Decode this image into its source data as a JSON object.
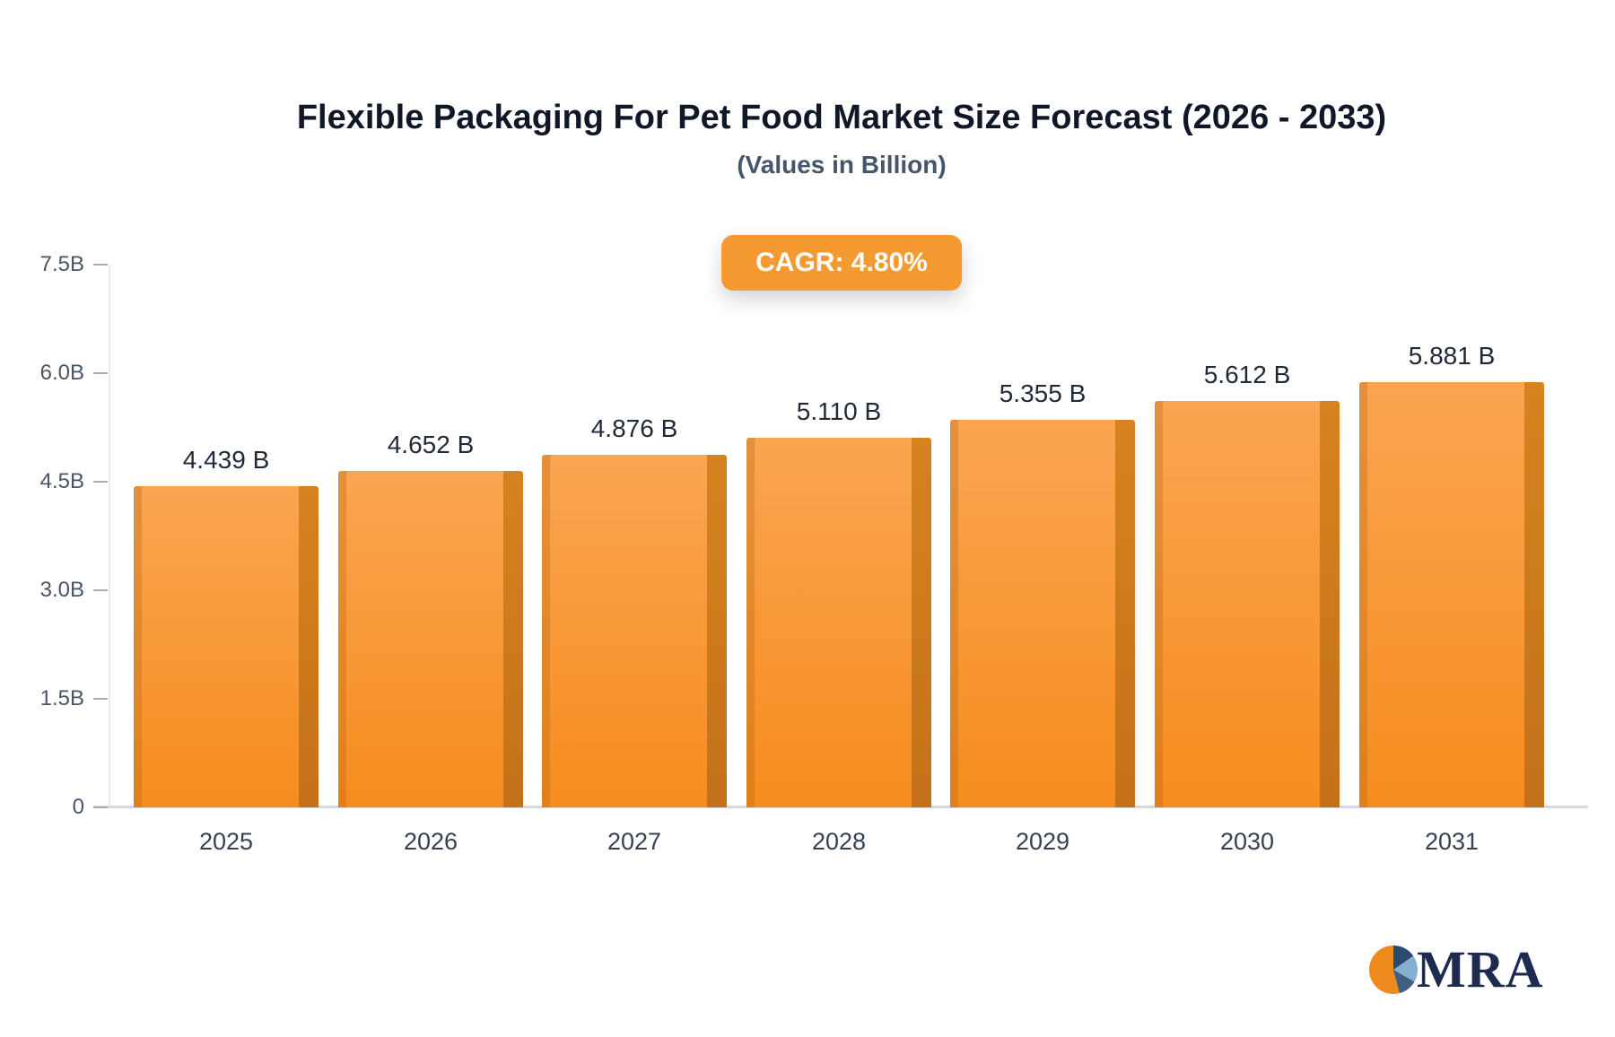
{
  "logo_text": "MRA",
  "chart_data": {
    "type": "bar",
    "title": "Flexible Packaging For Pet Food Market Size Forecast (2026 - 2033)",
    "subtitle": "(Values in Billion)",
    "annotation": "CAGR: 4.80%",
    "categories": [
      "2025",
      "2026",
      "2027",
      "2028",
      "2029",
      "2030",
      "2031"
    ],
    "values": [
      4.439,
      4.652,
      4.876,
      5.11,
      5.355,
      5.612,
      5.881
    ],
    "value_labels": [
      "4.439 B",
      "4.652 B",
      "4.876 B",
      "5.110 B",
      "5.355 B",
      "5.612 B",
      "5.881 B"
    ],
    "y_ticks": [
      "0",
      "1.5B",
      "3.0B",
      "4.5B",
      "6.0B",
      "7.5B"
    ],
    "y_tick_values": [
      0,
      1.5,
      3.0,
      4.5,
      6.0,
      7.5
    ],
    "ylim": [
      0,
      7.5
    ],
    "xlabel": "",
    "ylabel": "",
    "legend": "none",
    "grid": "none",
    "bar_colors": {
      "face_top": "#faa551",
      "face_bottom": "#f68c1e",
      "side_top": "#d5831f",
      "side_bottom": "#c4711a"
    },
    "accent_color": "#f59a30"
  }
}
